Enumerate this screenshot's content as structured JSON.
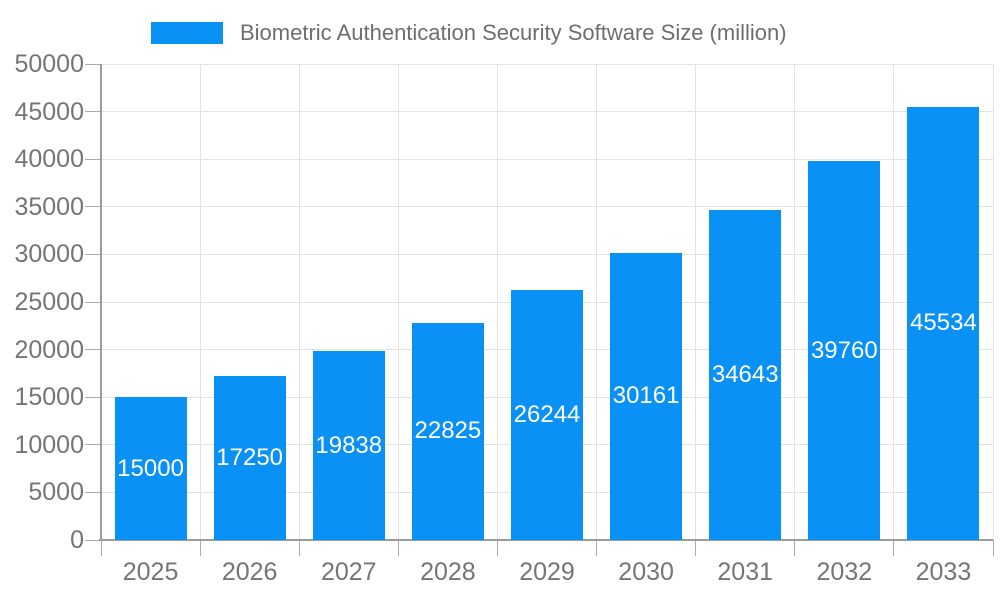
{
  "legend": {
    "label": "Biometric Authentication Security Software Size (million)"
  },
  "colors": {
    "bar": "#0a91f5",
    "gridline": "#e3e3e3",
    "axis": "#9b9b9b",
    "tick": "#ababab",
    "axis_text": "#757575",
    "legend_text": "#6e6e6e",
    "value_text": "#ffffff"
  },
  "chart_data": {
    "type": "bar",
    "title": "Biometric Authentication Security Software Size (million)",
    "categories": [
      "2025",
      "2026",
      "2027",
      "2028",
      "2029",
      "2030",
      "2031",
      "2032",
      "2033"
    ],
    "values": [
      15000,
      17250,
      19838,
      22825,
      26244,
      30161,
      34643,
      39760,
      45534
    ],
    "xlabel": "",
    "ylabel": "",
    "ylim": [
      0,
      50000
    ],
    "ytick_step": 5000,
    "ytick_labels": [
      "0",
      "5000",
      "10000",
      "15000",
      "20000",
      "25000",
      "30000",
      "35000",
      "40000",
      "45000",
      "50000"
    ],
    "grid": true,
    "legend_position": "top",
    "value_labels": "inside-center"
  }
}
